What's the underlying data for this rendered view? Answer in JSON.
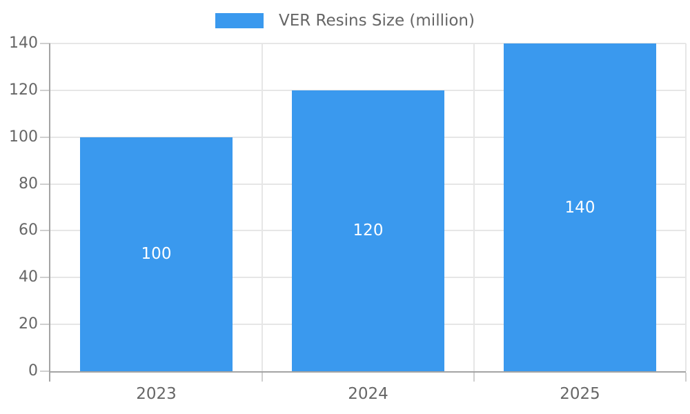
{
  "chart_data": {
    "type": "bar",
    "title": "",
    "legend": {
      "label": "VER Resins Size (million)",
      "position": "top"
    },
    "categories": [
      "2023",
      "2024",
      "2025"
    ],
    "series": [
      {
        "name": "VER Resins Size (million)",
        "color": "#3a99ee",
        "values": [
          100,
          120,
          140
        ]
      }
    ],
    "bar_labels": [
      "100",
      "120",
      "140"
    ],
    "xlabel": "",
    "ylabel": "",
    "ylim": [
      0,
      140
    ],
    "yticks": [
      0,
      20,
      40,
      60,
      80,
      100,
      120,
      140
    ],
    "grid": true,
    "legend_position": "top-center",
    "colors": {
      "bar": "#3a99ee",
      "axis_text": "#666666",
      "grid": "#e6e6e6",
      "axis_line": "#a3a3a3",
      "tick": "#cfcfcf",
      "bar_label": "#ffffff",
      "background": "#ffffff"
    }
  }
}
